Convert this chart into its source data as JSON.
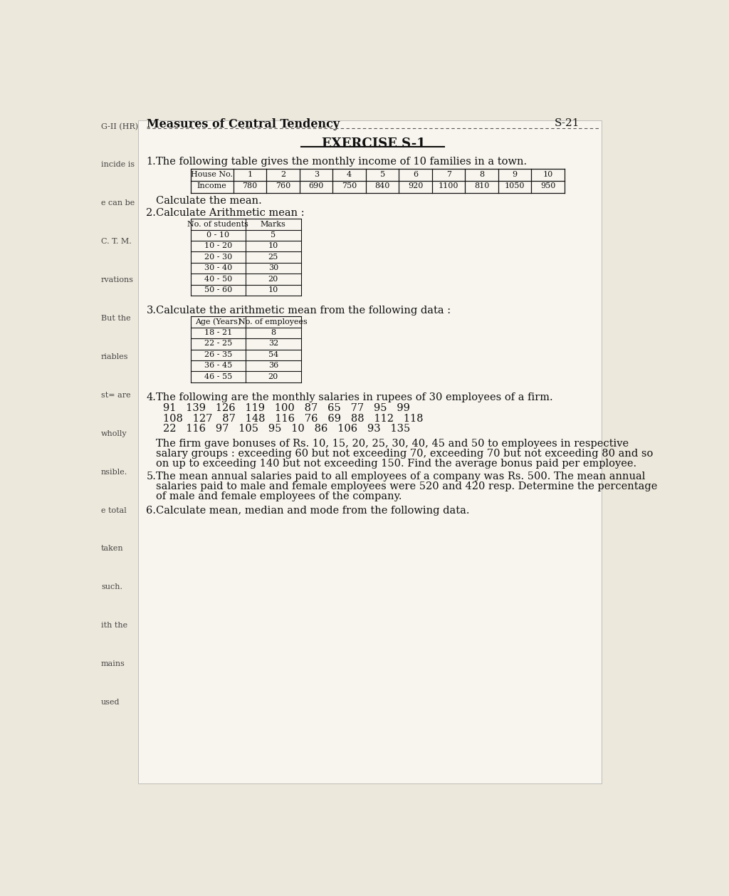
{
  "page_title": "Measures of Central Tendency",
  "page_number_top": "S-21",
  "section_header": "EXERCISE S-1",
  "left_margin_texts": [
    "G-II (HR)",
    "incide is",
    "e can be",
    "C. T. M.",
    "rvations",
    "But the",
    "riables",
    "st= are",
    "wholly",
    "nsible.",
    "e total",
    "taken",
    "such.",
    "ith the",
    "mains",
    "used"
  ],
  "q1_text": "The following table gives the monthly income of 10 families in a town.",
  "q1_headers": [
    "House No.",
    "1",
    "2",
    "3",
    "4",
    "5",
    "6",
    "7",
    "8",
    "9",
    "10"
  ],
  "q1_values": [
    "Income",
    "780",
    "760",
    "690",
    "750",
    "840",
    "920",
    "1100",
    "810",
    "1050",
    "950"
  ],
  "q1_sub": "Calculate the mean.",
  "q2_text": "Calculate Arithmetic mean :",
  "q2_col1_hdr": "No. of students",
  "q2_col2_hdr": "Marks",
  "q2_col1": [
    "0 - 10",
    "10 - 20",
    "20 - 30",
    "30 - 40",
    "40 - 50",
    "50 - 60"
  ],
  "q2_col2": [
    "5",
    "10",
    "25",
    "30",
    "20",
    "10"
  ],
  "q3_text": "Calculate the arithmetic mean from the following data :",
  "q3_col1_hdr": "Age (Years)",
  "q3_col2_hdr": "No. of employees",
  "q3_col1": [
    "18 - 21",
    "22 - 25",
    "26 - 35",
    "36 - 45",
    "46 - 55"
  ],
  "q3_col2": [
    "8",
    "32",
    "54",
    "36",
    "20"
  ],
  "q4_text": "The following are the monthly salaries in rupees of 30 employees of a firm.",
  "q4_rows": [
    [
      "91",
      "139",
      "126",
      "119",
      "100",
      "87",
      "65",
      "77",
      "95",
      "99"
    ],
    [
      "108",
      "127",
      "87",
      "148",
      "116",
      "76",
      "69",
      "88",
      "112",
      "118"
    ],
    [
      "22",
      "116",
      "97",
      "105",
      "95",
      "10",
      "86",
      "106",
      "93",
      "135"
    ]
  ],
  "q5_line1": "The mean annual salaries paid to all employees of a company was Rs. 500. The mean annual",
  "q5_line2": "salaries paid to male and female employees were 520 and 420 resp. Determine the percentage",
  "q5_line3": "of male and female employees of the company.",
  "q6_text": "Calculate mean, median and mode from the following data.",
  "q4_extra": "The firm gave bonuses of Rs. 10, 15, 20, 25, 30, 40, 45 and 50 to employees in respective salary groups : exceeding 60 but not exceeding 70, exceeding 70 but not exceeding 80 and so on up to exceeding 140 but not exceeding 150. Find the average bonus paid per employee.",
  "bg_color": "#ede8dc",
  "page_color": "#f8f5ee",
  "text_color": "#111111",
  "font_size": 10.5
}
